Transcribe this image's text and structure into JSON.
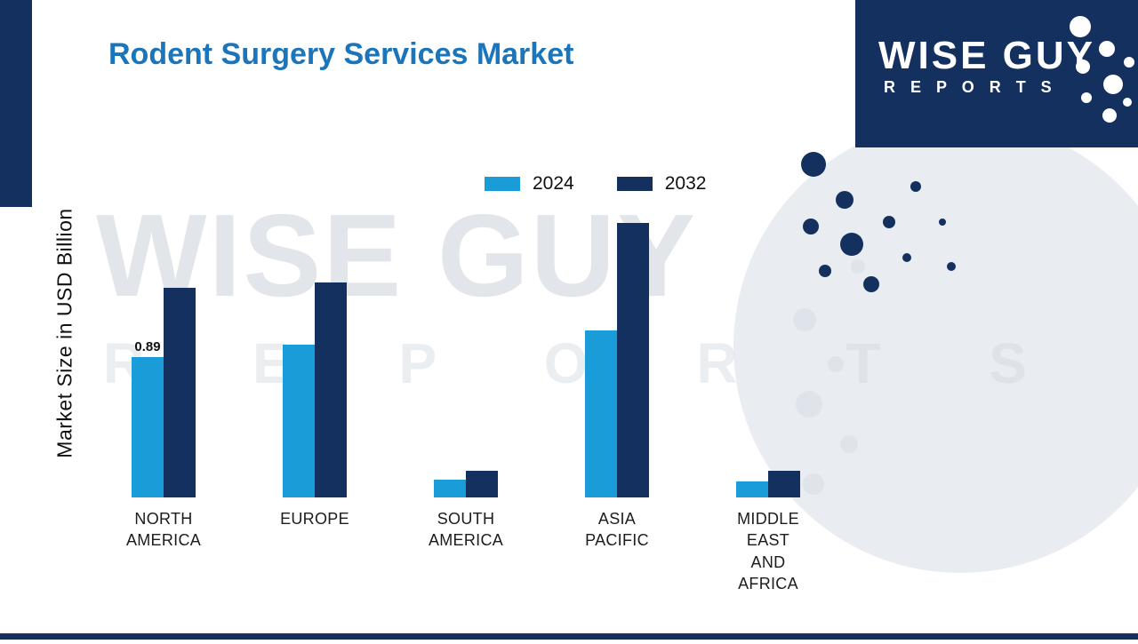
{
  "title": "Rodent Surgery Services Market",
  "logo": {
    "name": "WISE GUY",
    "subtitle": "R E P O R T S"
  },
  "watermark": {
    "line1": "WISE GUY",
    "line2": "R E P O R T S"
  },
  "colors": {
    "series_2024": "#1a9cd8",
    "series_2032": "#13305e",
    "title_blue": "#1b75ba",
    "accent_navy": "#13305e",
    "head_gray": "#e9edf2"
  },
  "chart_data": {
    "type": "bar",
    "title": "Rodent Surgery Services Market",
    "xlabel": "",
    "ylabel": "Market Size in USD Billion",
    "ylim": [
      0,
      1.8
    ],
    "grid": false,
    "legend_position": "top",
    "categories": [
      "NORTH\nAMERICA",
      "EUROPE",
      "SOUTH\nAMERICA",
      "ASIA\nPACIFIC",
      "MIDDLE\nEAST\nAND\nAFRICA"
    ],
    "series": [
      {
        "name": "2024",
        "color": "#1a9cd8",
        "values": [
          0.89,
          0.97,
          0.11,
          1.06,
          0.1
        ],
        "labels": [
          "0.89",
          "",
          "",
          "",
          ""
        ]
      },
      {
        "name": "2032",
        "color": "#13305e",
        "values": [
          1.33,
          1.36,
          0.17,
          1.74,
          0.17
        ],
        "labels": [
          "",
          "",
          "",
          "",
          ""
        ]
      }
    ]
  }
}
